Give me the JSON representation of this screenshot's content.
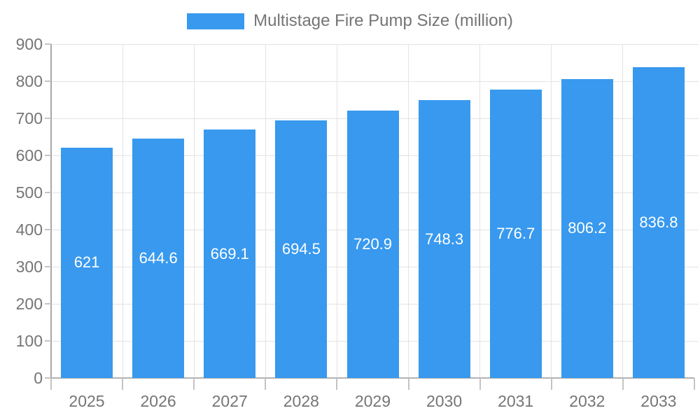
{
  "chart_data": {
    "type": "bar",
    "title": "Multistage Fire Pump Size (million)",
    "legend_label": "Multistage Fire Pump Size (million)",
    "legend_position": "top",
    "categories": [
      "2025",
      "2026",
      "2027",
      "2028",
      "2029",
      "2030",
      "2031",
      "2032",
      "2033"
    ],
    "values": [
      621,
      644.6,
      669.1,
      694.5,
      720.9,
      748.3,
      776.7,
      806.2,
      836.8
    ],
    "xlabel": "",
    "ylabel": "",
    "ylim": [
      0,
      900
    ],
    "ytick_step": 100,
    "ytick_labels": [
      "0",
      "100",
      "200",
      "300",
      "400",
      "500",
      "600",
      "700",
      "800",
      "900"
    ],
    "grid": true,
    "colors": {
      "bar": "#3899ee",
      "value_label": "#ffffff",
      "axis_text": "#757575",
      "gridline": "#e3e3e3",
      "axis_line": "#a8a8a8",
      "background": "#ffffff"
    }
  }
}
